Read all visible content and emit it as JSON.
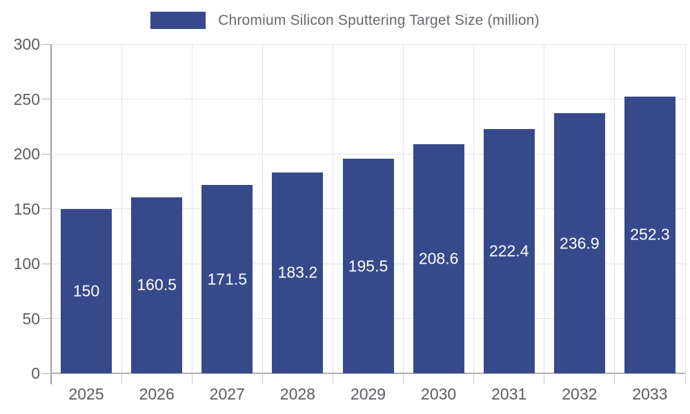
{
  "chart_data": {
    "type": "bar",
    "title": "Chromium Silicon Sputtering Target Size (million)",
    "legend": {
      "label": "Chromium Silicon Sputtering Target Size (million)",
      "position": "top-center"
    },
    "categories": [
      "2025",
      "2026",
      "2027",
      "2028",
      "2029",
      "2030",
      "2031",
      "2032",
      "2033"
    ],
    "values": [
      150,
      160.5,
      171.5,
      183.2,
      195.5,
      208.6,
      222.4,
      236.9,
      252.3
    ],
    "value_labels": [
      "150",
      "160.5",
      "171.5",
      "183.2",
      "195.5",
      "208.6",
      "222.4",
      "236.9",
      "252.3"
    ],
    "xlabel": "",
    "ylabel": "",
    "ylim": [
      0,
      300
    ],
    "y_ticks": [
      0,
      50,
      100,
      150,
      200,
      250,
      300
    ],
    "grid": "horizontal and vertical gridlines on",
    "colors": {
      "bar": "#364a8b",
      "value_label": "#ffffff",
      "axis_label": "#5a5c61",
      "grid_line": "#e4e4e9",
      "axis_line": "#b0b0b3",
      "legend_text": "#67696d",
      "background": "#ffffff"
    }
  }
}
